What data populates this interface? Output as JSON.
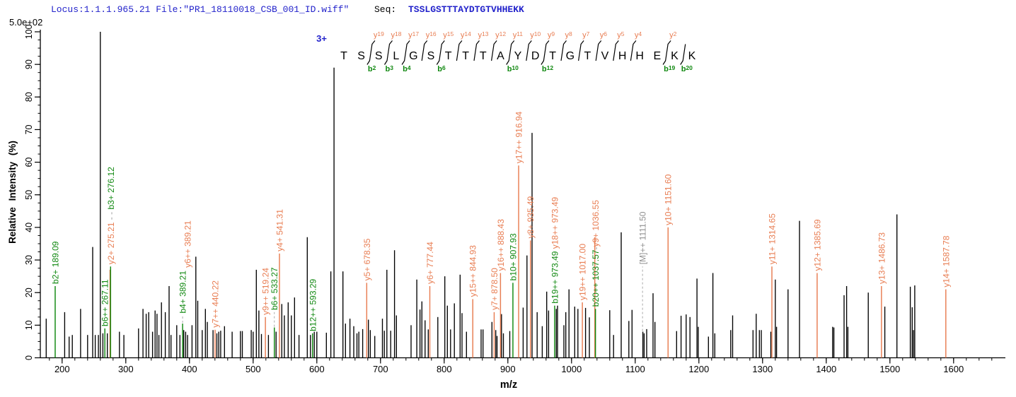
{
  "header": {
    "locus_file": "Locus:1.1.1.965.21 File:\"PR1_18110018_CSB_001_ID.wiff\"",
    "seq_label": "Seq:",
    "sequence": "TSSLGSTTTAYDTGTVHHEKK",
    "scale_note": "5.0e+02"
  },
  "colors": {
    "header_blue": "#2323cb",
    "y_ion": "#e87d52",
    "b_ion": "#108810",
    "precursor_gray": "#909090",
    "peak_black": "#000000",
    "axis": "#000000"
  },
  "chart_data": {
    "type": "bar",
    "title": "MS/MS fragmentation spectrum",
    "xlabel": "m/z",
    "ylabel": "Relative Intensity (%)",
    "xlim": [
      166,
      1680
    ],
    "ylim": [
      0,
      100
    ],
    "x_major_ticks": [
      200,
      300,
      400,
      500,
      600,
      700,
      800,
      900,
      1000,
      1100,
      1200,
      1300,
      1400,
      1500,
      1600
    ],
    "x_minor_step": 20,
    "y_major_ticks": [
      0,
      10,
      20,
      30,
      40,
      50,
      60,
      70,
      80,
      90,
      100
    ],
    "y_minor_step": 2.5,
    "intensity_scale_note": "5.0e+02",
    "peptide": {
      "charge_label": "3+",
      "residues": [
        "T",
        "S",
        "S",
        "L",
        "G",
        "S",
        "T",
        "T",
        "T",
        "A",
        "Y",
        "D",
        "T",
        "G",
        "T",
        "V",
        "H",
        "H",
        "E",
        "K",
        "K"
      ],
      "cuts": [
        {
          "pos": 2,
          "y": "y19",
          "b": "b2"
        },
        {
          "pos": 3,
          "y": "y18",
          "b": "b3"
        },
        {
          "pos": 4,
          "y": "y17",
          "b": "b4"
        },
        {
          "pos": 5,
          "y": "y16"
        },
        {
          "pos": 6,
          "y": "y15",
          "b": "b6"
        },
        {
          "pos": 7,
          "y": "y14"
        },
        {
          "pos": 8,
          "y": "y13"
        },
        {
          "pos": 9,
          "y": "y12"
        },
        {
          "pos": 10,
          "y": "y11",
          "b": "b10"
        },
        {
          "pos": 11,
          "y": "y10"
        },
        {
          "pos": 12,
          "y": "y9",
          "b": "b12"
        },
        {
          "pos": 13,
          "y": "y8"
        },
        {
          "pos": 14,
          "y": "y7"
        },
        {
          "pos": 15,
          "y": "y6"
        },
        {
          "pos": 16,
          "y": "y5"
        },
        {
          "pos": 17,
          "y": "y4"
        },
        {
          "pos": 19,
          "y": "y2",
          "b": "b19"
        },
        {
          "pos": 20,
          "b": "b20"
        }
      ]
    },
    "labeled_peaks": [
      {
        "mz": 189.09,
        "pct": 22,
        "ion": "b",
        "label_parts": [
          [
            "b",
            "b2+ 189.09"
          ]
        ]
      },
      {
        "mz": 267.11,
        "pct": 9,
        "ion": "b",
        "label_parts": [
          [
            "b",
            "b6++ 267.11"
          ]
        ]
      },
      {
        "mz": 275.21,
        "pct": 27,
        "ion": "y",
        "label_parts": null
      },
      {
        "mz": 276.12,
        "pct": 28,
        "ion": "b",
        "label_parts": [
          [
            "y",
            "y2+ 275.21"
          ],
          [
            "gray",
            " - - "
          ],
          [
            "b",
            "b3+ 276.12"
          ]
        ]
      },
      {
        "mz": 389.21,
        "pct": 10.5,
        "ion": "b",
        "label_pct": 13,
        "leader": true,
        "label_parts": [
          [
            "b",
            "b4+ 389.21"
          ]
        ]
      },
      {
        "mz": 389.21,
        "pct": null,
        "ion": "y",
        "label_pct": 27,
        "dx": 7,
        "label_parts": [
          [
            "y",
            "y6++ 389.21"
          ]
        ]
      },
      {
        "mz": 440.22,
        "pct": 8.6,
        "ion": "y",
        "label_parts": [
          [
            "y",
            "y7++ 440.22"
          ]
        ]
      },
      {
        "mz": 519.24,
        "pct": 12.5,
        "ion": "y",
        "label_parts": [
          [
            "y",
            "y9++ 519.24"
          ]
        ]
      },
      {
        "mz": 533.27,
        "pct": 9.3,
        "ion": "b",
        "label_pct": 14,
        "leader": true,
        "label_parts": [
          [
            "b",
            "b6+ 533.27"
          ]
        ]
      },
      {
        "mz": 541.31,
        "pct": 32,
        "ion": "y",
        "label_parts": [
          [
            "y",
            "y4+ 541.31"
          ]
        ]
      },
      {
        "mz": 593.29,
        "pct": 7.5,
        "ion": "b",
        "label_parts": [
          [
            "b",
            "b12++ 593.29"
          ]
        ]
      },
      {
        "mz": 678.35,
        "pct": 23,
        "ion": "y",
        "label_parts": [
          [
            "y",
            "y5+ 678.35"
          ]
        ]
      },
      {
        "mz": 777.44,
        "pct": 22,
        "ion": "y",
        "label_parts": [
          [
            "y",
            "y6+ 777.44"
          ]
        ]
      },
      {
        "mz": 844.93,
        "pct": 18,
        "ion": "y",
        "label_parts": [
          [
            "y",
            "y15++ 844.93"
          ]
        ]
      },
      {
        "mz": 878.5,
        "pct": 14,
        "ion": "y",
        "label_parts": [
          [
            "y",
            "y7+ 878.50"
          ]
        ]
      },
      {
        "mz": 888.43,
        "pct": 26,
        "ion": "y",
        "label_parts": [
          [
            "y",
            "y16++ 888.43"
          ]
        ]
      },
      {
        "mz": 907.93,
        "pct": 23,
        "ion": "b",
        "label_parts": [
          [
            "b",
            "b10+ 907.93"
          ]
        ]
      },
      {
        "mz": 916.94,
        "pct": 59,
        "ion": "y",
        "label_parts": [
          [
            "y",
            "y17++ 916.94"
          ]
        ]
      },
      {
        "mz": 935.49,
        "pct": 36,
        "ion": "y",
        "label_parts": [
          [
            "y",
            "y8+ 935.49"
          ]
        ]
      },
      {
        "mz": 973.49,
        "pct": 16,
        "ion": "b",
        "label_parts": [
          [
            "b",
            "b19++ 973.49"
          ],
          [
            "gray",
            " "
          ],
          [
            "y",
            "y18++ 973.49"
          ]
        ]
      },
      {
        "mz": 1017.0,
        "pct": 17,
        "ion": "y",
        "label_parts": [
          [
            "y",
            "y19++ 1017.00"
          ]
        ]
      },
      {
        "mz": 1036.55,
        "pct": 37,
        "ion": "y",
        "label_parts": null
      },
      {
        "mz": 1037.57,
        "pct": 15,
        "ion": "b",
        "label_parts": [
          [
            "b",
            "b20++ 1037.57"
          ],
          [
            "gray",
            "-"
          ],
          [
            "y",
            "y9+ 1036.55"
          ]
        ]
      },
      {
        "mz": 1111.5,
        "pct": 8,
        "ion": "M",
        "label_pct": 28,
        "leader": true,
        "nobar": true,
        "label_parts": [
          [
            "M",
            "[M]++ 1111.50"
          ]
        ]
      },
      {
        "mz": 1151.6,
        "pct": 40,
        "ion": "y",
        "label_parts": [
          [
            "y",
            "y10+ 1151.60"
          ]
        ]
      },
      {
        "mz": 1314.65,
        "pct": 28,
        "ion": "y",
        "label_parts": [
          [
            "y",
            "y11+ 1314.65"
          ]
        ]
      },
      {
        "mz": 1385.69,
        "pct": 26,
        "ion": "y",
        "label_parts": [
          [
            "y",
            "y12+ 1385.69"
          ]
        ]
      },
      {
        "mz": 1486.73,
        "pct": 22,
        "ion": "y",
        "label_parts": [
          [
            "y",
            "y13+ 1486.73"
          ]
        ]
      },
      {
        "mz": 1587.78,
        "pct": 21,
        "ion": "y",
        "label_parts": [
          [
            "y",
            "y14+ 1587.78"
          ]
        ]
      }
    ],
    "unlabeled_peaks": [
      [
        175,
        12
      ],
      [
        204,
        14
      ],
      [
        211,
        6.5
      ],
      [
        216,
        7
      ],
      [
        229,
        15
      ],
      [
        240,
        7
      ],
      [
        248,
        34
      ],
      [
        252,
        7
      ],
      [
        257,
        7
      ],
      [
        260,
        100
      ],
      [
        264,
        7.5
      ],
      [
        271,
        7.5
      ],
      [
        290,
        8
      ],
      [
        297,
        7
      ],
      [
        320,
        9
      ],
      [
        327,
        15
      ],
      [
        332,
        13.5
      ],
      [
        336,
        14
      ],
      [
        342,
        8
      ],
      [
        346,
        14.5
      ],
      [
        349,
        13.5
      ],
      [
        352,
        7
      ],
      [
        356,
        17
      ],
      [
        362,
        14
      ],
      [
        368,
        22
      ],
      [
        371,
        7
      ],
      [
        380,
        10
      ],
      [
        385,
        7
      ],
      [
        391,
        8.5
      ],
      [
        394,
        8
      ],
      [
        397,
        7
      ],
      [
        404,
        10
      ],
      [
        410,
        31
      ],
      [
        413,
        17.5
      ],
      [
        420,
        8.5
      ],
      [
        425,
        15
      ],
      [
        428,
        11
      ],
      [
        437,
        8.5
      ],
      [
        443,
        7.5
      ],
      [
        446,
        8
      ],
      [
        449,
        8.3
      ],
      [
        455,
        9.7
      ],
      [
        467,
        8
      ],
      [
        480,
        8.2
      ],
      [
        483,
        8.2
      ],
      [
        497,
        8.5
      ],
      [
        500,
        8
      ],
      [
        505,
        27
      ],
      [
        509,
        14.5
      ],
      [
        513,
        7.3
      ],
      [
        524,
        7
      ],
      [
        536,
        8
      ],
      [
        545,
        16.5
      ],
      [
        549,
        13
      ],
      [
        555,
        17
      ],
      [
        560,
        13
      ],
      [
        565,
        18.5
      ],
      [
        572,
        7
      ],
      [
        585,
        37
      ],
      [
        590,
        7
      ],
      [
        596,
        8
      ],
      [
        600,
        8
      ],
      [
        615,
        7.7
      ],
      [
        622,
        26.5
      ],
      [
        627,
        89
      ],
      [
        641,
        26.5
      ],
      [
        645,
        10.5
      ],
      [
        652,
        12
      ],
      [
        658,
        9.7
      ],
      [
        663,
        7.5
      ],
      [
        666,
        8
      ],
      [
        672,
        8.8
      ],
      [
        681,
        11.7
      ],
      [
        684,
        8.5
      ],
      [
        691,
        6.7
      ],
      [
        703,
        12
      ],
      [
        706,
        8.3
      ],
      [
        710,
        27
      ],
      [
        716,
        8.3
      ],
      [
        722,
        33
      ],
      [
        725,
        13
      ],
      [
        748,
        10
      ],
      [
        757,
        24
      ],
      [
        762,
        14.8
      ],
      [
        765,
        17.3
      ],
      [
        770,
        11.5
      ],
      [
        775,
        8.7
      ],
      [
        790,
        12.5
      ],
      [
        801,
        25
      ],
      [
        805,
        16
      ],
      [
        810,
        8.7
      ],
      [
        816,
        16.7
      ],
      [
        825,
        25.5
      ],
      [
        828,
        13.7
      ],
      [
        835,
        8
      ],
      [
        858,
        8.7
      ],
      [
        861,
        8.7
      ],
      [
        875,
        11
      ],
      [
        881,
        8.5
      ],
      [
        883,
        6.7
      ],
      [
        890,
        13.4
      ],
      [
        893,
        7.5
      ],
      [
        903,
        8.2
      ],
      [
        924,
        15.4
      ],
      [
        930,
        31.4
      ],
      [
        938,
        69
      ],
      [
        946,
        14
      ],
      [
        954,
        9.7
      ],
      [
        961,
        20.3
      ],
      [
        964,
        14.5
      ],
      [
        976,
        15
      ],
      [
        978,
        16
      ],
      [
        988,
        10
      ],
      [
        991,
        14
      ],
      [
        996,
        21
      ],
      [
        1005,
        15.7
      ],
      [
        1010,
        15
      ],
      [
        1022,
        15.3
      ],
      [
        1028,
        12.4
      ],
      [
        1060,
        14.6
      ],
      [
        1066,
        7
      ],
      [
        1078,
        38.5
      ],
      [
        1090,
        11.3
      ],
      [
        1095,
        14.7
      ],
      [
        1112,
        8
      ],
      [
        1114,
        7.5
      ],
      [
        1118,
        8.8
      ],
      [
        1128,
        19.8
      ],
      [
        1131,
        11
      ],
      [
        1165,
        8.2
      ],
      [
        1172,
        12.9
      ],
      [
        1180,
        13.3
      ],
      [
        1186,
        12.5
      ],
      [
        1197,
        24.3
      ],
      [
        1199,
        9.5
      ],
      [
        1215,
        6.5
      ],
      [
        1222,
        26
      ],
      [
        1225,
        7.5
      ],
      [
        1250,
        8.5
      ],
      [
        1253,
        13
      ],
      [
        1285,
        8.5
      ],
      [
        1290,
        13.5
      ],
      [
        1295,
        8.5
      ],
      [
        1298,
        8.5
      ],
      [
        1313,
        8
      ],
      [
        1320,
        24
      ],
      [
        1322,
        9.5
      ],
      [
        1340,
        21
      ],
      [
        1358,
        42
      ],
      [
        1410,
        9.5
      ],
      [
        1412,
        9.3
      ],
      [
        1428,
        19.2
      ],
      [
        1432,
        22
      ],
      [
        1434,
        9.5
      ],
      [
        1466,
        20
      ],
      [
        1492,
        15.7
      ],
      [
        1511,
        44
      ],
      [
        1532,
        21.8
      ],
      [
        1535,
        15.5
      ],
      [
        1537,
        8.5
      ],
      [
        1539,
        22.2
      ]
    ]
  }
}
